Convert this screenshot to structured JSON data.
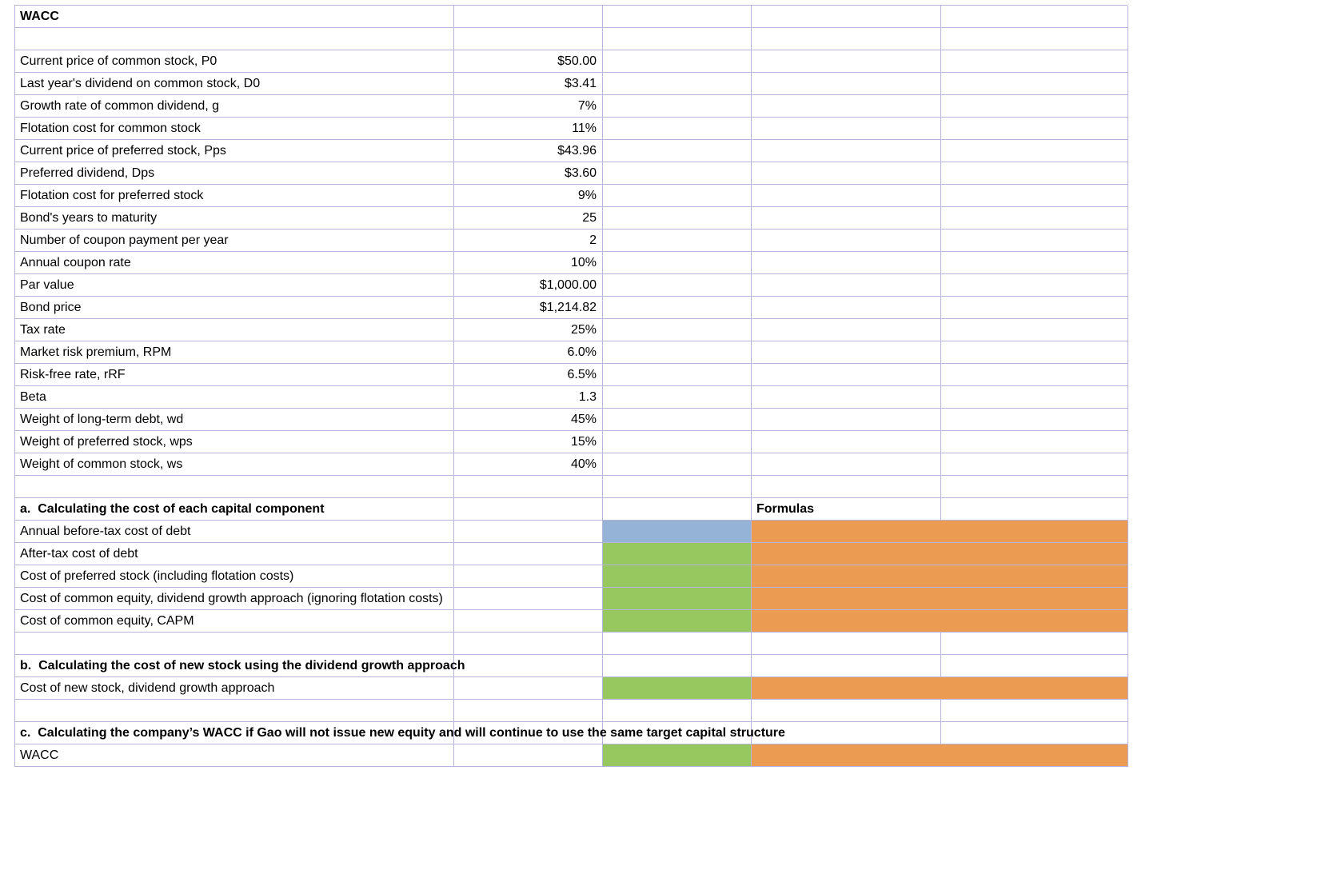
{
  "title": "WACC",
  "inputs": [
    {
      "label": "Current price of common stock, P0",
      "value": "$50.00"
    },
    {
      "label": "Last year's dividend on common stock, D0",
      "value": "$3.41"
    },
    {
      "label": "Growth rate of common dividend, g",
      "value": "7%"
    },
    {
      "label": "Flotation cost for common stock",
      "value": "11%"
    },
    {
      "label": "Current price of preferred stock, Pps",
      "value": "$43.96"
    },
    {
      "label": "Preferred dividend, Dps",
      "value": "$3.60"
    },
    {
      "label": "Flotation cost for preferred stock",
      "value": "9%"
    },
    {
      "label": "Bond's years to maturity",
      "value": "25"
    },
    {
      "label": "Number of coupon payment per year",
      "value": "2"
    },
    {
      "label": "Annual coupon rate",
      "value": "10%"
    },
    {
      "label": "Par value",
      "value": "$1,000.00"
    },
    {
      "label": "Bond price",
      "value": "$1,214.82"
    },
    {
      "label": "Tax rate",
      "value": "25%"
    },
    {
      "label": "Market risk premium, RPM",
      "value": "6.0%"
    },
    {
      "label": "Risk-free rate, rRF",
      "value": "6.5%"
    },
    {
      "label": "Beta",
      "value": "1.3"
    },
    {
      "label": "Weight of long-term debt, wd",
      "value": "45%"
    },
    {
      "label": "Weight of preferred stock, wps",
      "value": "15%"
    },
    {
      "label": "Weight of common stock, ws",
      "value": "40%"
    }
  ],
  "sections": {
    "a": {
      "title": "a.  Calculating the cost of each capital component",
      "formulas_label": "Formulas",
      "rows": [
        {
          "label": "Annual before-tax cost of debt",
          "answer_style": "blue"
        },
        {
          "label": "After-tax cost of debt",
          "answer_style": "green"
        },
        {
          "label": "Cost of preferred stock (including flotation costs)",
          "answer_style": "green"
        },
        {
          "label": "Cost of common equity, dividend growth approach (ignoring flotation costs)",
          "answer_style": "green"
        },
        {
          "label": "Cost of common equity, CAPM",
          "answer_style": "green"
        }
      ]
    },
    "b": {
      "title": "b.  Calculating the cost of new stock using the dividend growth approach",
      "row_label": "Cost of new stock, dividend growth approach"
    },
    "c": {
      "title": "c.  Calculating the company’s WACC if Gao will not issue new equity and will continue to use the same target capital structure",
      "row_label": "WACC"
    }
  },
  "colors": {
    "border": "#b6b4da",
    "blue": "#95b3d7",
    "green": "#97c75f",
    "orange": "#ec9c52"
  }
}
